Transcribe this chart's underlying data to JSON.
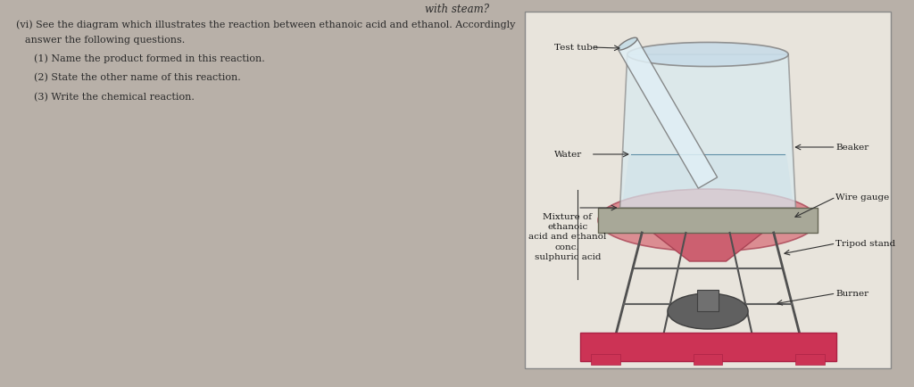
{
  "bg_color": "#b8b0a8",
  "title_line1": "(vi) See the diagram which illustrates the reaction between ethanoic acid and ethanol. Accordingly",
  "title_line2": "answer the following questions.",
  "q1": "(1) Name the product formed in this reaction.",
  "q2": "(2) State the other name of this reaction.",
  "q3": "(3) Write the chemical reaction.",
  "top_text": "with steam?",
  "diagram_labels": {
    "test_tube": "Test tube",
    "water": "Water",
    "mixture": "Mixture of\nethanoic\nacid and ethanol\nconc.\nsulphuric acid",
    "beaker": "Beaker",
    "wire_gauge": "Wire gauge",
    "tripod_stand": "Tripod stand",
    "burner": "Burner"
  },
  "text_color": "#2a2a2a",
  "diagram_bg": "#e8e4dc",
  "diagram_border": "#888888"
}
